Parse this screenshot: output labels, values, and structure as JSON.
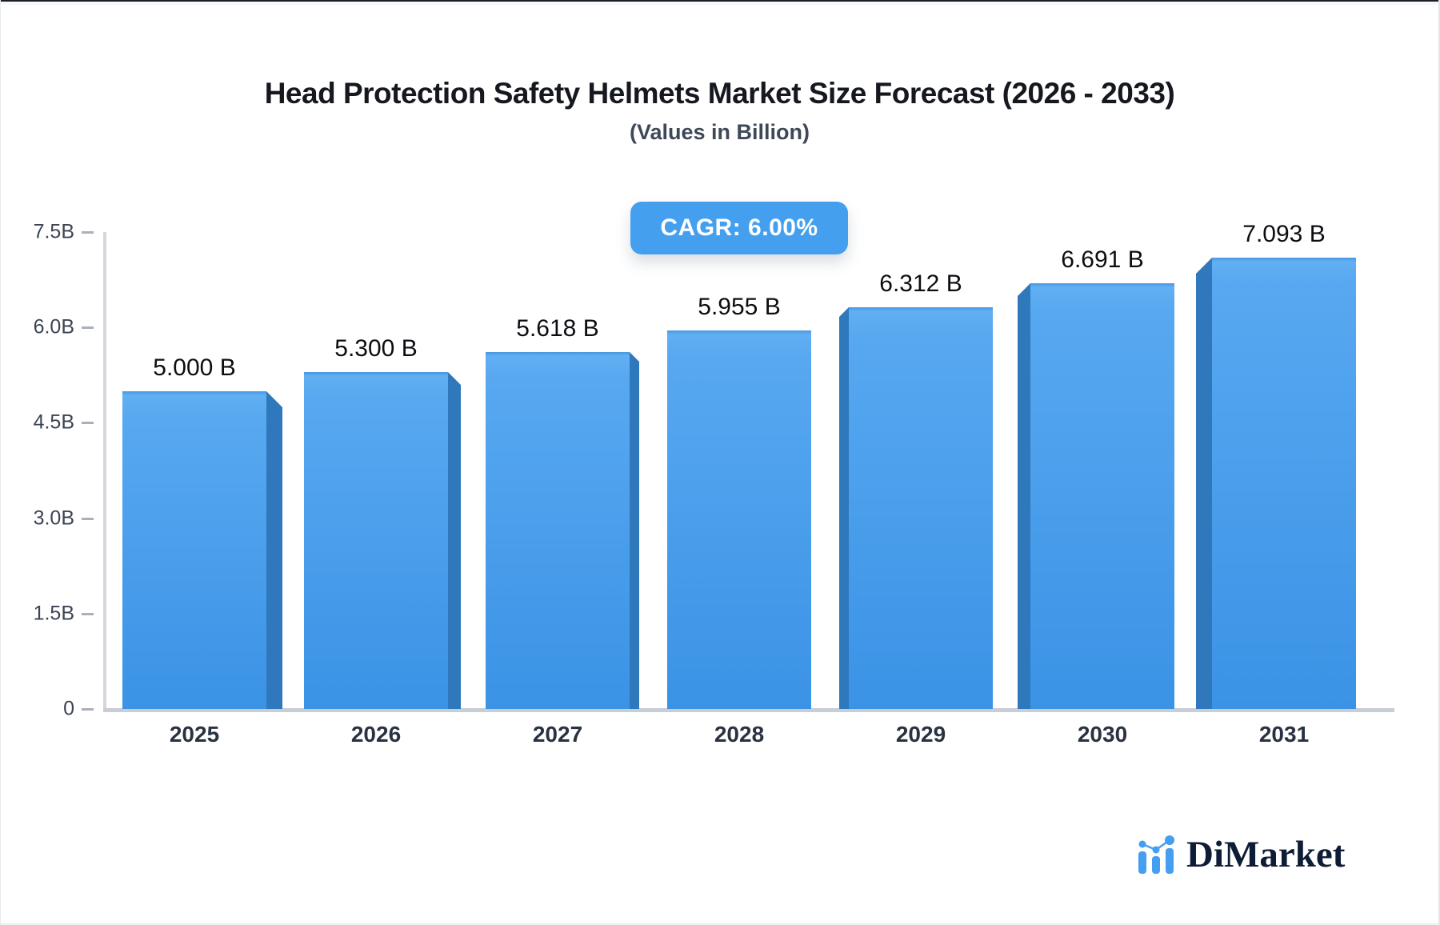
{
  "title": "Head Protection Safety Helmets Market Size Forecast (2026 - 2033)",
  "subtitle": "(Values in Billion)",
  "badge": {
    "label": "CAGR: 6.00%",
    "color": "#44a0ef",
    "text_color": "#ffffff"
  },
  "brand": {
    "name": "DiMarket",
    "icon": "bar-chart-logo-icon",
    "accent_color": "#459ef0",
    "text_color": "#0f1c36"
  },
  "colors": {
    "bar_face": "#459ae9",
    "bar_face_light": "#61aff3",
    "bar_side": "#2e78bb",
    "axis_line": "#cdd1d8",
    "tick": "#aab0ba",
    "y_label": "#3b4454",
    "x_label": "#2a3242",
    "value_label": "#0d0e12",
    "title": "#16181f",
    "subtitle": "#3f4859"
  },
  "chart_data": {
    "type": "bar",
    "title": "Head Protection Safety Helmets Market Size Forecast (2026 - 2033)",
    "subtitle": "(Values in Billion)",
    "annotation": "CAGR: 6.00%",
    "categories": [
      "2025",
      "2026",
      "2027",
      "2028",
      "2029",
      "2030",
      "2031"
    ],
    "values": [
      5.0,
      5.3,
      5.618,
      5.955,
      6.312,
      6.691,
      7.093
    ],
    "value_labels": [
      "5.000 B",
      "5.300 B",
      "5.618 B",
      "5.955 B",
      "6.312 B",
      "6.691 B",
      "7.093 B"
    ],
    "xlabel": "",
    "ylabel": "",
    "ylim": [
      0,
      7.5
    ],
    "y_ticks": [
      {
        "label": "7.5B",
        "value": 7.5
      },
      {
        "label": "6.0B",
        "value": 6.0
      },
      {
        "label": "4.5B",
        "value": 4.5
      },
      {
        "label": "3.0B",
        "value": 3.0
      },
      {
        "label": "1.5B",
        "value": 1.5
      },
      {
        "label": "0",
        "value": 0.0
      }
    ],
    "grid": false,
    "legend": false,
    "bar_style": "3d-perspective-center-vanishing"
  }
}
